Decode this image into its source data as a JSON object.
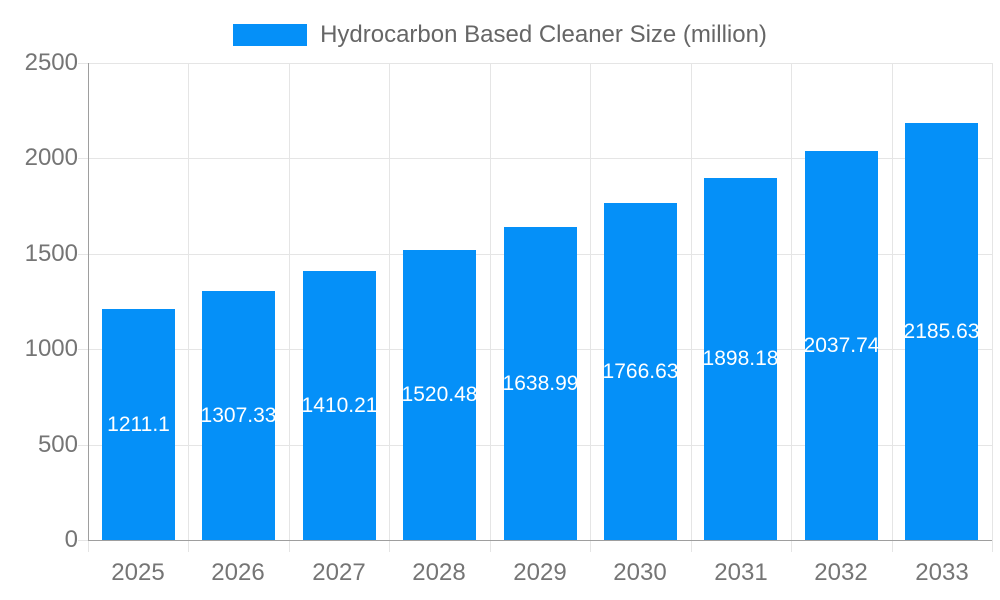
{
  "chart_data": {
    "type": "bar",
    "series_name": "Hydrocarbon Based Cleaner Size (million)",
    "categories": [
      "2025",
      "2026",
      "2027",
      "2028",
      "2029",
      "2030",
      "2031",
      "2032",
      "2033"
    ],
    "values": [
      1211.1,
      1307.33,
      1410.21,
      1520.48,
      1638.99,
      1766.63,
      1898.18,
      2037.74,
      2185.63
    ],
    "value_labels": [
      "1211.1",
      "1307.33",
      "1410.21",
      "1520.48",
      "1638.99",
      "1766.63",
      "1898.18",
      "2037.74",
      "2185.63"
    ],
    "title": "",
    "xlabel": "",
    "ylabel": "",
    "ylim": [
      0,
      2500
    ],
    "yticks": [
      0,
      500,
      1000,
      1500,
      2000,
      2500
    ],
    "ytick_labels": [
      "0",
      "500",
      "1000",
      "1500",
      "2000",
      "2500"
    ],
    "grid": true,
    "legend_position": "top",
    "bar_color": "#0590F8",
    "value_label_color": "#ffffff"
  },
  "colors": {
    "grid": "#e5e5e5",
    "axis": "#9e9e9e",
    "tick_text": "#757575",
    "legend_text": "#666666",
    "background": "#ffffff"
  }
}
